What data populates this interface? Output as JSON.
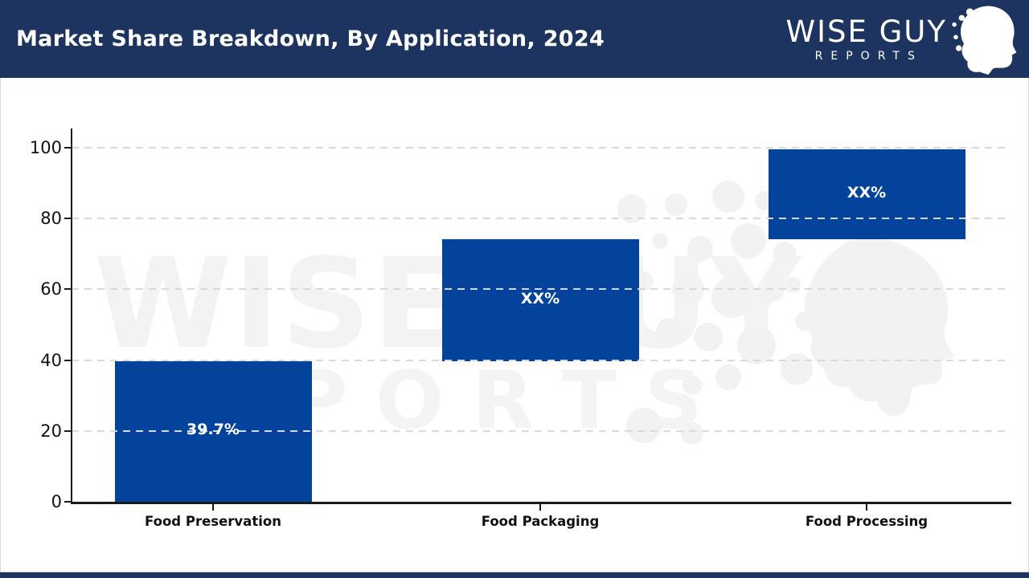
{
  "header": {
    "title": "Market Share Breakdown, By Application, 2024",
    "logo": {
      "line1": "WISE GUY",
      "line2": "REPORTS"
    }
  },
  "watermark": {
    "line1": "WISE GUY",
    "line2": "R E P O R T S"
  },
  "colors": {
    "header_bg": "#1e3460",
    "bar": "#04439c",
    "gridline": "#d9d9d9",
    "axis": "#1a1a1a",
    "bar_label": "#ffffff",
    "watermark": "#f3f3f3"
  },
  "chart_data": {
    "type": "bar",
    "subtype": "waterfall-floating-bars",
    "title": "Market Share Breakdown, By Application, 2024",
    "categories": [
      "Food Preservation",
      "Food Packaging",
      "Food Processing"
    ],
    "segments": [
      {
        "category": "Food Preservation",
        "start": 0,
        "end": 39.7,
        "label": "39.7%"
      },
      {
        "category": "Food Packaging",
        "start": 39.7,
        "end": 74.2,
        "label": "XX%"
      },
      {
        "category": "Food Processing",
        "start": 74.2,
        "end": 99.6,
        "label": "XX%"
      }
    ],
    "yticks": [
      0,
      20,
      40,
      60,
      80,
      100
    ],
    "ylim": [
      0,
      105
    ],
    "xlabel": "",
    "ylabel": "",
    "grid": "horizontal-dashed",
    "legend": "none"
  }
}
